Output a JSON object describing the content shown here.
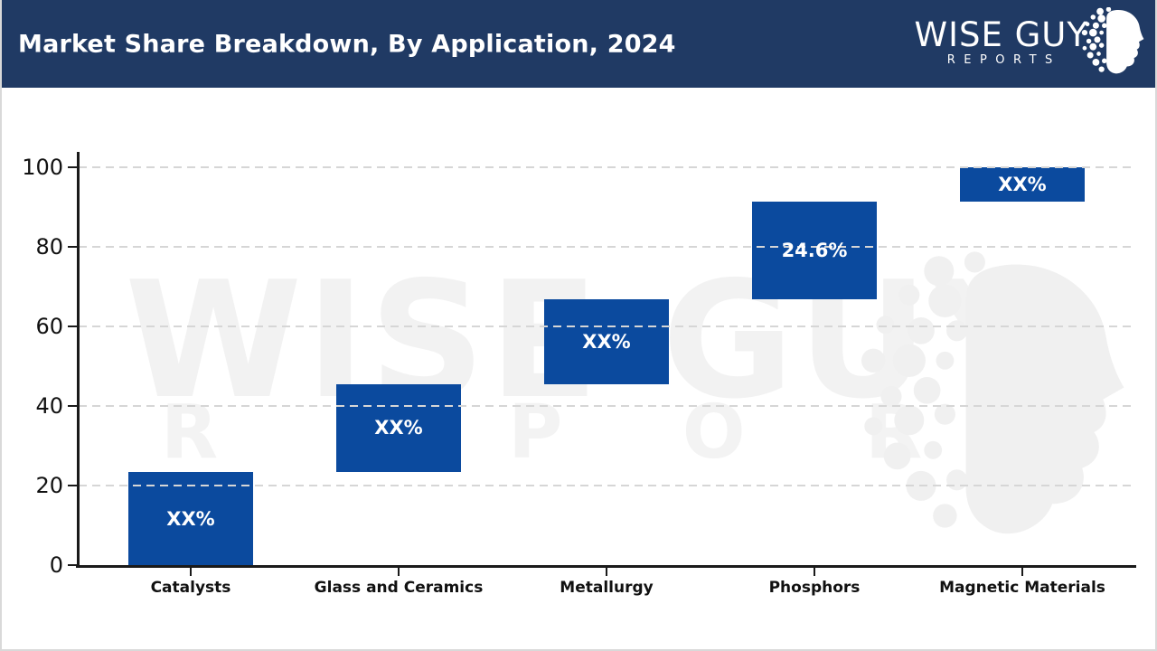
{
  "header": {
    "title": "Market Share Breakdown, By Application, 2024",
    "background_color": "#203a64",
    "logo": {
      "line1": "WISE GUY",
      "line2": "REPORTS"
    }
  },
  "watermark": {
    "line1": "WISE GUY",
    "line2": "R E P O R T S"
  },
  "chart_data": {
    "type": "bar",
    "subtype": "floating-segment-breakdown",
    "title": "Market Share Breakdown, By Application, 2024",
    "categories": [
      "Catalysts",
      "Glass and Ceramics",
      "Metallurgy",
      "Phosphors",
      "Magnetic Materials"
    ],
    "segments": [
      {
        "category": "Catalysts",
        "start": 0,
        "end": 23.4,
        "label": "XX%"
      },
      {
        "category": "Glass and Ceramics",
        "start": 23.4,
        "end": 45.5,
        "label": "XX%"
      },
      {
        "category": "Metallurgy",
        "start": 45.5,
        "end": 66.8,
        "label": "XX%"
      },
      {
        "category": "Phosphors",
        "start": 66.8,
        "end": 91.4,
        "label": "24.6%"
      },
      {
        "category": "Magnetic Materials",
        "start": 91.4,
        "end": 100,
        "label": "XX%"
      }
    ],
    "y_ticks": [
      0,
      20,
      40,
      60,
      80,
      100
    ],
    "ylim": [
      0,
      104
    ],
    "xlabel": "",
    "ylabel": "",
    "bar_color": "#0b4a9e",
    "grid": "dashed-horizontal",
    "grid_color": "#d6d6d6",
    "legend": "none"
  }
}
